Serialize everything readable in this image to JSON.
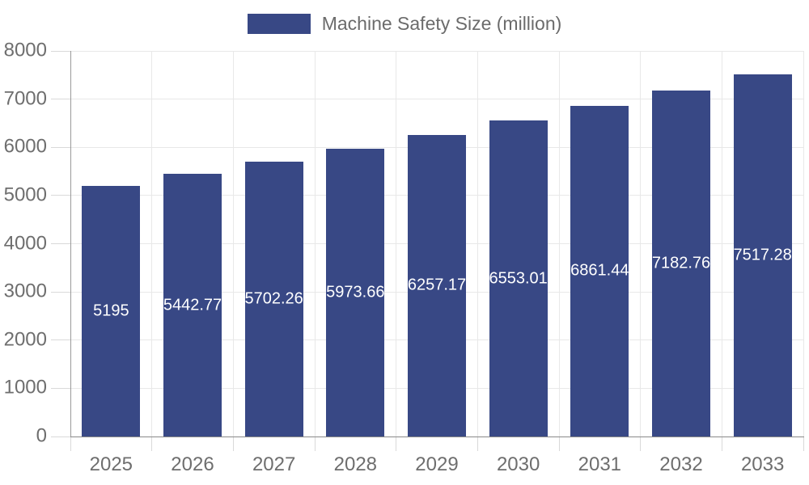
{
  "legend": {
    "label": "Machine Safety Size (million)"
  },
  "chart_data": {
    "type": "bar",
    "title": "",
    "legend_entries": [
      "Machine Safety Size (million)"
    ],
    "legend_position": "top-center",
    "categories": [
      "2025",
      "2026",
      "2027",
      "2028",
      "2029",
      "2030",
      "2031",
      "2032",
      "2033"
    ],
    "values": [
      5195,
      5442.77,
      5702.26,
      5973.66,
      6257.17,
      6553.01,
      6861.44,
      7182.76,
      7517.28
    ],
    "value_labels": [
      "5195",
      "5442.77",
      "5702.26",
      "5973.66",
      "6257.17",
      "6553.01",
      "6861.44",
      "7182.76",
      "7517.28"
    ],
    "xlabel": "",
    "ylabel": "",
    "ylim": [
      0,
      8000
    ],
    "yticks": [
      0,
      1000,
      2000,
      3000,
      4000,
      5000,
      6000,
      7000,
      8000
    ],
    "grid": true,
    "colors": {
      "bar": "#384885",
      "bar_label": "#ffffff",
      "axis_text": "#6e6e6e",
      "legend_text": "#6b6b6b",
      "gridline": "#e8e8e8",
      "tick": "#d9d9d9",
      "y_axis_line": "#9a9a9a",
      "x_axis_line": "#8a8a8a"
    }
  }
}
